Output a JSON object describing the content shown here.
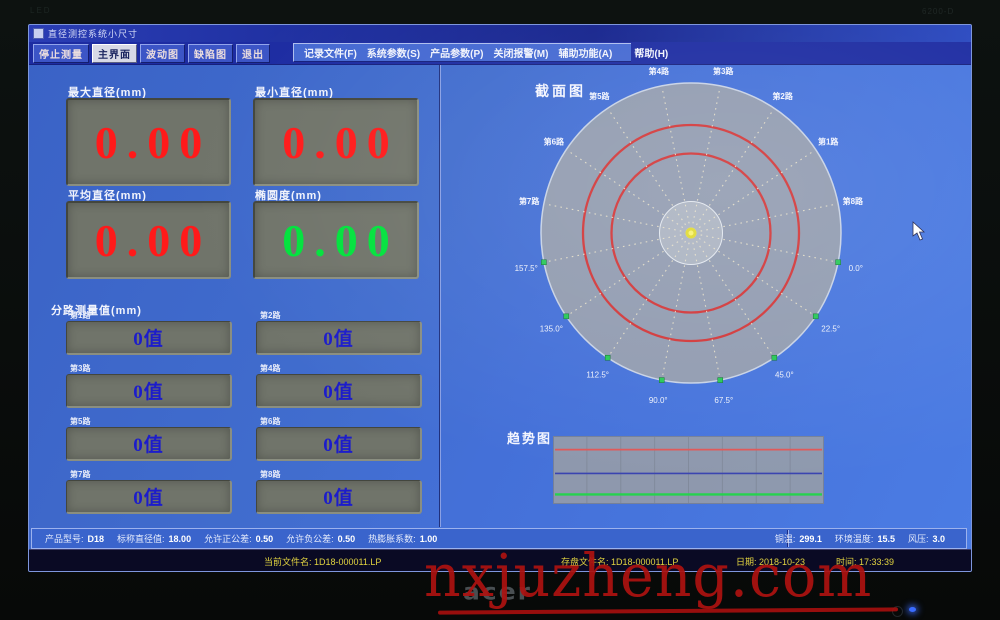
{
  "bezel": {
    "top_left_text": "LED",
    "top_right": "6200-D",
    "brand": "acer"
  },
  "watermark": {
    "text": "nxjuzheng.com"
  },
  "window": {
    "title": "直径测控系统小尺寸"
  },
  "toolbar": {
    "buttons": [
      {
        "label": "停止测量",
        "active": false
      },
      {
        "label": "主界面",
        "active": true
      },
      {
        "label": "波动图",
        "active": false
      },
      {
        "label": "缺陷图",
        "active": false
      },
      {
        "label": "退出",
        "active": false
      }
    ]
  },
  "menu": {
    "items": [
      "记录文件(F)",
      "系统参数(S)",
      "产品参数(P)",
      "关闭报警(M)",
      "辅助功能(A)",
      "帮助(H)"
    ]
  },
  "panels": {
    "gauges": [
      {
        "label": "最大直径(mm)",
        "value": "0.00",
        "value_color": "#ff1a1a"
      },
      {
        "label": "最小直径(mm)",
        "value": "0.00",
        "value_color": "#ff1a1a"
      },
      {
        "label": "平均直径(mm)",
        "value": "0.00",
        "value_color": "#ff1a1a"
      },
      {
        "label": "椭圆度(mm)",
        "value": "0.00",
        "value_color": "#00e23c"
      }
    ],
    "channel_section_label": "分路测量值(mm)",
    "channels": [
      {
        "label": "第1路",
        "value": "0值"
      },
      {
        "label": "第2路",
        "value": "0值"
      },
      {
        "label": "第3路",
        "value": "0值"
      },
      {
        "label": "第4路",
        "value": "0值"
      },
      {
        "label": "第5路",
        "value": "0值"
      },
      {
        "label": "第6路",
        "value": "0值"
      },
      {
        "label": "第7路",
        "value": "0值"
      },
      {
        "label": "第8路",
        "value": "0值"
      }
    ]
  },
  "status_bar": {
    "product_fields": [
      {
        "label": "产品型号",
        "value": "D18"
      },
      {
        "label": "标称直径值",
        "value": "18.00"
      },
      {
        "label": "允许正公差",
        "value": "0.50"
      },
      {
        "label": "允许负公差",
        "value": "0.50"
      },
      {
        "label": "热膨胀系数",
        "value": "1.00"
      }
    ],
    "env_fields": [
      {
        "label": "铜温",
        "value": "299.1"
      },
      {
        "label": "环境温度",
        "value": "15.5"
      },
      {
        "label": "风压",
        "value": "3.0"
      }
    ]
  },
  "bottom_bar": {
    "items": [
      {
        "label": "当前文件名",
        "value": "1D18-000011.LP"
      },
      {
        "label": "存盘文件名",
        "value": "1D18-000011.LP"
      },
      {
        "label": "日期",
        "value": "2018-10-23"
      },
      {
        "label": "时间",
        "value": "17:33:39"
      }
    ]
  },
  "colors": {
    "screen_blue": "#4470d8",
    "panel_gray": "#70746a",
    "value_red": "#ff1a1a",
    "value_green": "#00e23c",
    "value_blue": "#1c1ccb",
    "ring_red": "#d83030",
    "marker_green": "#28c858",
    "dot_ray": "#eee6cc",
    "center_yellow": "#e0da32",
    "bottom_yellow": "#e2d440",
    "watermark_red": "#ac1210"
  },
  "chart_data": [
    {
      "type": "polar-section",
      "title": "截面图",
      "disk_color": "#98a0ae",
      "ring_color": "#d83030",
      "ring_radii_frac": [
        0.72,
        0.53
      ],
      "inner_circle_frac": 0.21,
      "ray_count": 16,
      "ray_step_deg": 22.5,
      "ray_offset_deg": 11.25,
      "channel_labels": [
        {
          "label": "第1路",
          "angle_deg": 33.75
        },
        {
          "label": "第2路",
          "angle_deg": 56.25
        },
        {
          "label": "第3路",
          "angle_deg": 78.75
        },
        {
          "label": "第4路",
          "angle_deg": 101.25
        },
        {
          "label": "第5路",
          "angle_deg": 123.75
        },
        {
          "label": "第6路",
          "angle_deg": 146.25
        },
        {
          "label": "第7路",
          "angle_deg": 168.75
        },
        {
          "label": "第8路",
          "angle_deg": 11.25
        }
      ],
      "angle_ticks": [
        {
          "label": "0.0°",
          "angle_deg": -11.25
        },
        {
          "label": "22.5°",
          "angle_deg": -33.75
        },
        {
          "label": "45.0°",
          "angle_deg": -56.25
        },
        {
          "label": "67.5°",
          "angle_deg": -78.75
        },
        {
          "label": "90.0°",
          "angle_deg": -101.25
        },
        {
          "label": "112.5°",
          "angle_deg": -123.75
        },
        {
          "label": "135.0°",
          "angle_deg": -146.25
        },
        {
          "label": "157.5°",
          "angle_deg": -168.75
        }
      ]
    },
    {
      "type": "trend-lines",
      "title": "趋势图",
      "panel_color": "#959caa",
      "grid": {
        "vertical_divisions": 8
      },
      "lines": [
        {
          "name": "upper-limit-red",
          "rel_y": 0.2,
          "color": "#e05858",
          "width": 1.8
        },
        {
          "name": "center-blue",
          "rel_y": 0.55,
          "color": "#3a44b0",
          "width": 1.6
        },
        {
          "name": "measure-green",
          "rel_y": 0.86,
          "color": "#26d24e",
          "width": 2.4
        }
      ]
    }
  ]
}
